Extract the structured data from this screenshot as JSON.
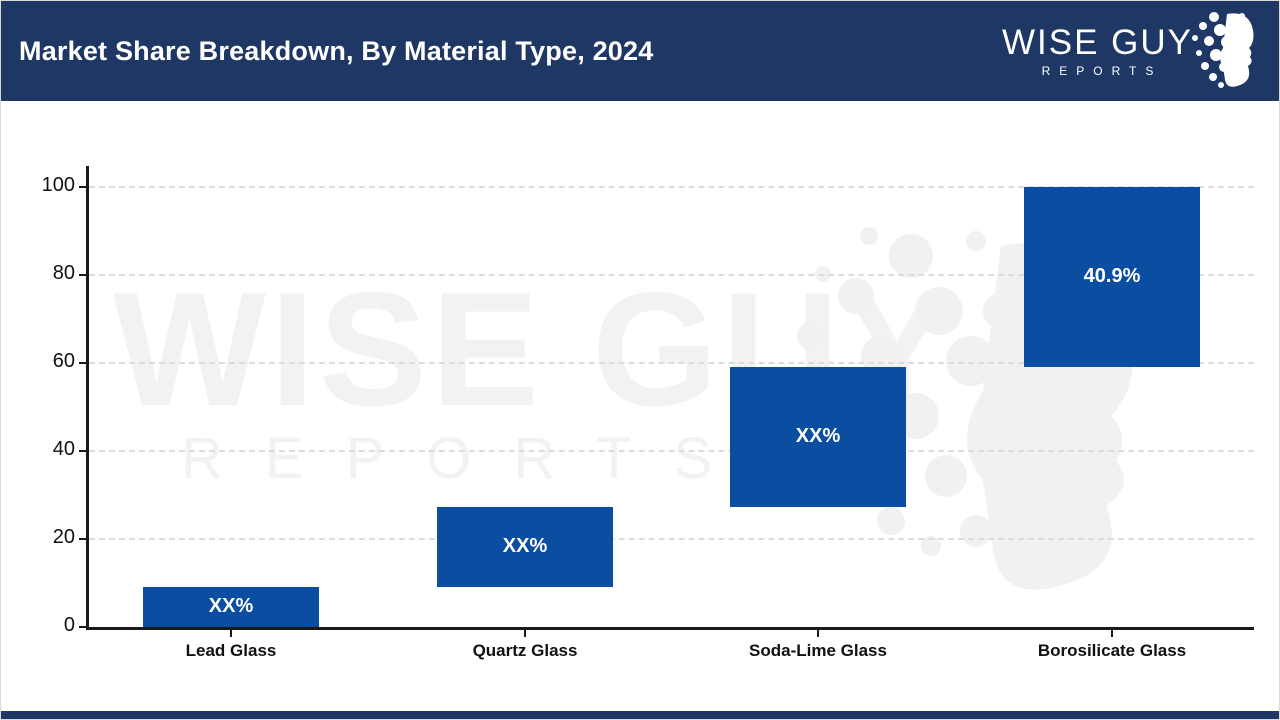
{
  "header": {
    "title": "Market Share Breakdown, By Material Type, 2024",
    "logo": {
      "line1": "WISE GUY",
      "line2": "REPORTS"
    }
  },
  "watermark": {
    "line1": "WISE GUY",
    "line2": "REPORTS"
  },
  "colors": {
    "header_bg": "#1e3765",
    "footer_bg": "#1e3765",
    "bar": "#0b4da1",
    "bar_label": "#ffffff",
    "gridline": "#dcdcdc",
    "axis": "#1a1a1a",
    "watermark": "#f2f2f5"
  },
  "chart_data": {
    "type": "bar",
    "subtype": "floating-waterfall",
    "title": "Market Share Breakdown, By Material Type, 2024",
    "xlabel": "",
    "ylabel": "",
    "ylim": [
      0,
      100
    ],
    "yticks": [
      0,
      20,
      40,
      60,
      80,
      100
    ],
    "grid": "horizontal-dashed",
    "legend": "none",
    "categories": [
      "Lead Glass",
      "Quartz Glass",
      "Soda-Lime Glass",
      "Borosilicate Glass"
    ],
    "segments": [
      {
        "category": "Lead Glass",
        "start": 0,
        "end": 9.1,
        "label": "XX%"
      },
      {
        "category": "Quartz Glass",
        "start": 9.1,
        "end": 27.3,
        "label": "XX%"
      },
      {
        "category": "Soda-Lime Glass",
        "start": 27.3,
        "end": 59.1,
        "label": "XX%"
      },
      {
        "category": "Borosilicate Glass",
        "start": 59.1,
        "end": 100,
        "label": "40.9%",
        "value": 40.9
      }
    ]
  }
}
